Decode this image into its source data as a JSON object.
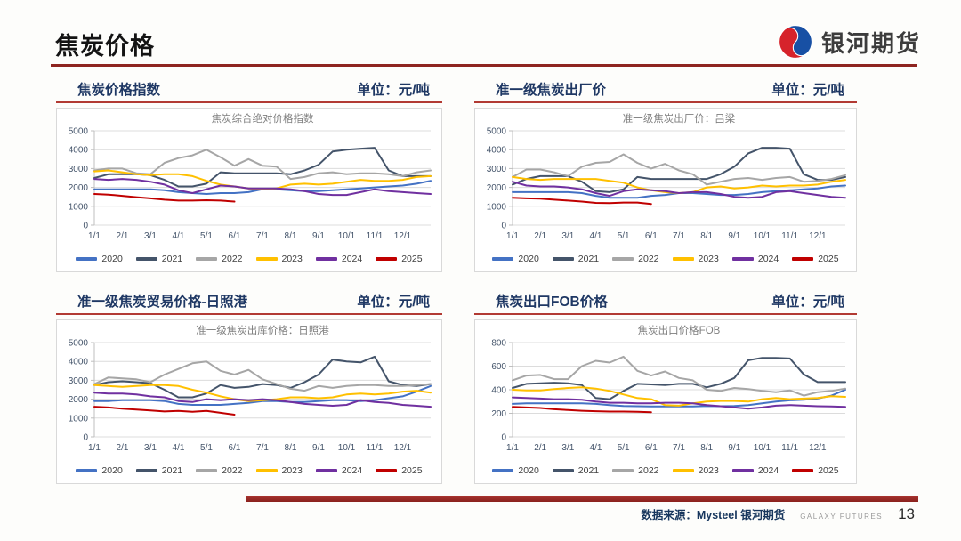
{
  "page": {
    "title": "焦炭价格"
  },
  "logo": {
    "text": "银河期货"
  },
  "footer": {
    "source": "数据来源：Mysteel 银河期货",
    "brand": "GALAXY FUTURES",
    "page_number": "13"
  },
  "colors": {
    "accent_red": "#8e2420",
    "header_blue": "#1f3864",
    "series": {
      "2020": "#4472C4",
      "2021": "#44546A",
      "2022": "#A6A6A6",
      "2023": "#FFC000",
      "2024": "#7030A0",
      "2025": "#C00000"
    }
  },
  "chart_data": [
    {
      "type": "line",
      "header": "焦炭价格指数",
      "unit": "单位：元/吨",
      "title": "焦炭综合绝对价格指数",
      "ylim": [
        0,
        5000
      ],
      "yticks": [
        0,
        1000,
        2000,
        3000,
        4000,
        5000
      ],
      "categories": [
        "1/1",
        "2/1",
        "3/1",
        "4/1",
        "5/1",
        "6/1",
        "7/1",
        "8/1",
        "9/1",
        "10/1",
        "11/1",
        "12/1"
      ],
      "legend_position": "bottom",
      "grid": true,
      "series": [
        {
          "name": "2020",
          "color": "#4472C4",
          "values": [
            1900,
            1900,
            1900,
            1900,
            1900,
            1850,
            1750,
            1700,
            1650,
            1700,
            1700,
            1750,
            1900,
            1900,
            1850,
            1800,
            1800,
            1850,
            1900,
            1950,
            2000,
            2050,
            2100,
            2200,
            2350
          ]
        },
        {
          "name": "2021",
          "color": "#44546A",
          "values": [
            2500,
            2700,
            2700,
            2700,
            2650,
            2400,
            2050,
            2050,
            2200,
            2800,
            2750,
            2750,
            2750,
            2750,
            2700,
            2900,
            3200,
            3900,
            4000,
            4050,
            4100,
            2900,
            2600,
            2600,
            2600
          ]
        },
        {
          "name": "2022",
          "color": "#A6A6A6",
          "values": [
            2900,
            3000,
            3000,
            2750,
            2700,
            3300,
            3550,
            3700,
            4000,
            3600,
            3150,
            3500,
            3150,
            3100,
            2450,
            2550,
            2750,
            2800,
            2700,
            2750,
            2750,
            2700,
            2600,
            2800,
            2900
          ]
        },
        {
          "name": "2023",
          "color": "#FFC000",
          "values": [
            2850,
            2900,
            2800,
            2700,
            2650,
            2700,
            2700,
            2600,
            2350,
            2150,
            2050,
            1950,
            1900,
            1950,
            2150,
            2200,
            2150,
            2200,
            2300,
            2400,
            2350,
            2350,
            2400,
            2550,
            2600
          ]
        },
        {
          "name": "2024",
          "color": "#7030A0",
          "values": [
            2450,
            2400,
            2450,
            2400,
            2300,
            2150,
            1850,
            1700,
            1900,
            2100,
            2050,
            1950,
            1950,
            1950,
            1900,
            1800,
            1650,
            1600,
            1600,
            1750,
            1900,
            1800,
            1750,
            1700,
            1650
          ]
        },
        {
          "name": "2025",
          "color": "#C00000",
          "values": [
            1650,
            1620,
            1550,
            1480,
            1420,
            1350,
            1300,
            1300,
            1320,
            1300,
            1250
          ]
        }
      ]
    },
    {
      "type": "line",
      "header": "准一级焦炭出厂价",
      "unit": "单位：元/吨",
      "title": "准一级焦炭出厂价：吕梁",
      "ylim": [
        0,
        5000
      ],
      "yticks": [
        0,
        1000,
        2000,
        3000,
        4000,
        5000
      ],
      "categories": [
        "1/1",
        "2/1",
        "3/1",
        "4/1",
        "5/1",
        "6/1",
        "7/1",
        "8/1",
        "9/1",
        "10/1",
        "11/1",
        "12/1"
      ],
      "legend_position": "bottom",
      "grid": true,
      "series": [
        {
          "name": "2020",
          "color": "#4472C4",
          "values": [
            1750,
            1750,
            1750,
            1750,
            1750,
            1700,
            1550,
            1450,
            1450,
            1450,
            1550,
            1600,
            1700,
            1700,
            1650,
            1600,
            1600,
            1650,
            1750,
            1800,
            1850,
            1900,
            1950,
            2050,
            2100
          ]
        },
        {
          "name": "2021",
          "color": "#44546A",
          "values": [
            2150,
            2450,
            2600,
            2600,
            2600,
            2300,
            1800,
            1750,
            1900,
            2550,
            2450,
            2450,
            2450,
            2450,
            2450,
            2700,
            3100,
            3800,
            4100,
            4100,
            4050,
            2700,
            2400,
            2400,
            2550
          ]
        },
        {
          "name": "2022",
          "color": "#A6A6A6",
          "values": [
            2550,
            2950,
            2950,
            2800,
            2600,
            3100,
            3300,
            3350,
            3750,
            3300,
            3000,
            3250,
            2900,
            2700,
            2150,
            2300,
            2450,
            2500,
            2400,
            2500,
            2550,
            2300,
            2350,
            2450,
            2650
          ]
        },
        {
          "name": "2023",
          "color": "#FFC000",
          "values": [
            2550,
            2450,
            2400,
            2450,
            2450,
            2450,
            2450,
            2350,
            2250,
            2000,
            1850,
            1750,
            1700,
            1750,
            2000,
            2050,
            1950,
            2000,
            2100,
            2050,
            2100,
            2100,
            2150,
            2300,
            2400
          ]
        },
        {
          "name": "2024",
          "color": "#7030A0",
          "values": [
            2300,
            2100,
            2050,
            2050,
            2000,
            1900,
            1700,
            1550,
            1800,
            1900,
            1850,
            1800,
            1700,
            1750,
            1750,
            1650,
            1500,
            1450,
            1500,
            1750,
            1800,
            1700,
            1600,
            1500,
            1450
          ]
        },
        {
          "name": "2025",
          "color": "#C00000",
          "values": [
            1450,
            1420,
            1400,
            1350,
            1300,
            1250,
            1180,
            1170,
            1200,
            1200,
            1120
          ]
        }
      ]
    },
    {
      "type": "line",
      "header": "准一级焦炭贸易价格-日照港",
      "unit": "单位：元/吨",
      "title": "准一级焦炭出库价格：日照港",
      "ylim": [
        0,
        5000
      ],
      "yticks": [
        0,
        1000,
        2000,
        3000,
        4000,
        5000
      ],
      "categories": [
        "1/1",
        "2/1",
        "3/1",
        "4/1",
        "5/1",
        "6/1",
        "7/1",
        "8/1",
        "9/1",
        "10/1",
        "11/1",
        "12/1"
      ],
      "legend_position": "bottom",
      "grid": true,
      "series": [
        {
          "name": "2020",
          "color": "#4472C4",
          "values": [
            1900,
            1900,
            1950,
            1950,
            1950,
            1900,
            1750,
            1700,
            1700,
            1700,
            1750,
            1800,
            1900,
            1900,
            1850,
            1850,
            1900,
            1950,
            1950,
            1900,
            1950,
            2050,
            2150,
            2400,
            2700
          ]
        },
        {
          "name": "2021",
          "color": "#44546A",
          "values": [
            2750,
            2900,
            2950,
            2900,
            2850,
            2500,
            2100,
            2100,
            2300,
            2750,
            2600,
            2650,
            2800,
            2750,
            2600,
            2900,
            3300,
            4100,
            4000,
            3950,
            4250,
            2950,
            2750,
            2700,
            2800
          ]
        },
        {
          "name": "2022",
          "color": "#A6A6A6",
          "values": [
            2800,
            3150,
            3100,
            3050,
            2900,
            3300,
            3600,
            3900,
            4000,
            3500,
            3300,
            3550,
            3050,
            2800,
            2550,
            2450,
            2700,
            2600,
            2700,
            2750,
            2750,
            2700,
            2700,
            2750,
            2800
          ]
        },
        {
          "name": "2023",
          "color": "#FFC000",
          "values": [
            2750,
            2700,
            2650,
            2700,
            2750,
            2750,
            2700,
            2500,
            2350,
            2150,
            2000,
            1900,
            1950,
            2000,
            2100,
            2100,
            2050,
            2100,
            2250,
            2300,
            2250,
            2300,
            2400,
            2450,
            2350
          ]
        },
        {
          "name": "2024",
          "color": "#7030A0",
          "values": [
            2350,
            2300,
            2300,
            2250,
            2150,
            2100,
            1900,
            1850,
            2000,
            1950,
            2000,
            1950,
            2000,
            1950,
            1850,
            1750,
            1700,
            1650,
            1700,
            1950,
            1850,
            1800,
            1700,
            1650,
            1600
          ]
        },
        {
          "name": "2025",
          "color": "#C00000",
          "values": [
            1600,
            1560,
            1500,
            1450,
            1400,
            1350,
            1380,
            1330,
            1380,
            1280,
            1180
          ]
        }
      ]
    },
    {
      "type": "line",
      "header": "焦炭出口FOB价格",
      "unit": "单位：元/吨",
      "title": "焦炭出口价格FOB",
      "ylim": [
        0,
        800
      ],
      "yticks": [
        0,
        200,
        400,
        600,
        800
      ],
      "categories": [
        "1/1",
        "2/1",
        "3/1",
        "4/1",
        "5/1",
        "6/1",
        "7/1",
        "8/1",
        "9/1",
        "10/1",
        "11/1",
        "12/1"
      ],
      "legend_position": "bottom",
      "grid": true,
      "series": [
        {
          "name": "2020",
          "color": "#4472C4",
          "values": [
            280,
            285,
            285,
            285,
            285,
            285,
            280,
            270,
            262,
            260,
            258,
            258,
            258,
            258,
            262,
            260,
            262,
            270,
            285,
            300,
            310,
            315,
            325,
            350,
            400
          ]
        },
        {
          "name": "2021",
          "color": "#44546A",
          "values": [
            415,
            450,
            455,
            460,
            455,
            440,
            330,
            320,
            390,
            450,
            445,
            440,
            450,
            450,
            420,
            450,
            500,
            650,
            670,
            670,
            665,
            530,
            465,
            465,
            465
          ]
        },
        {
          "name": "2022",
          "color": "#A6A6A6",
          "values": [
            480,
            520,
            525,
            490,
            490,
            600,
            645,
            630,
            680,
            560,
            520,
            555,
            500,
            480,
            400,
            390,
            415,
            405,
            390,
            380,
            395,
            350,
            380,
            390,
            410
          ]
        },
        {
          "name": "2023",
          "color": "#FFC000",
          "values": [
            400,
            395,
            395,
            405,
            415,
            420,
            410,
            390,
            360,
            330,
            320,
            270,
            265,
            285,
            300,
            305,
            305,
            300,
            320,
            330,
            320,
            325,
            330,
            345,
            340
          ]
        },
        {
          "name": "2024",
          "color": "#7030A0",
          "values": [
            335,
            330,
            325,
            320,
            320,
            315,
            300,
            290,
            290,
            285,
            285,
            290,
            290,
            285,
            270,
            260,
            250,
            240,
            250,
            265,
            270,
            265,
            260,
            258,
            255
          ]
        },
        {
          "name": "2025",
          "color": "#C00000",
          "values": [
            255,
            250,
            245,
            235,
            228,
            222,
            218,
            215,
            215,
            213,
            210
          ]
        }
      ]
    }
  ]
}
